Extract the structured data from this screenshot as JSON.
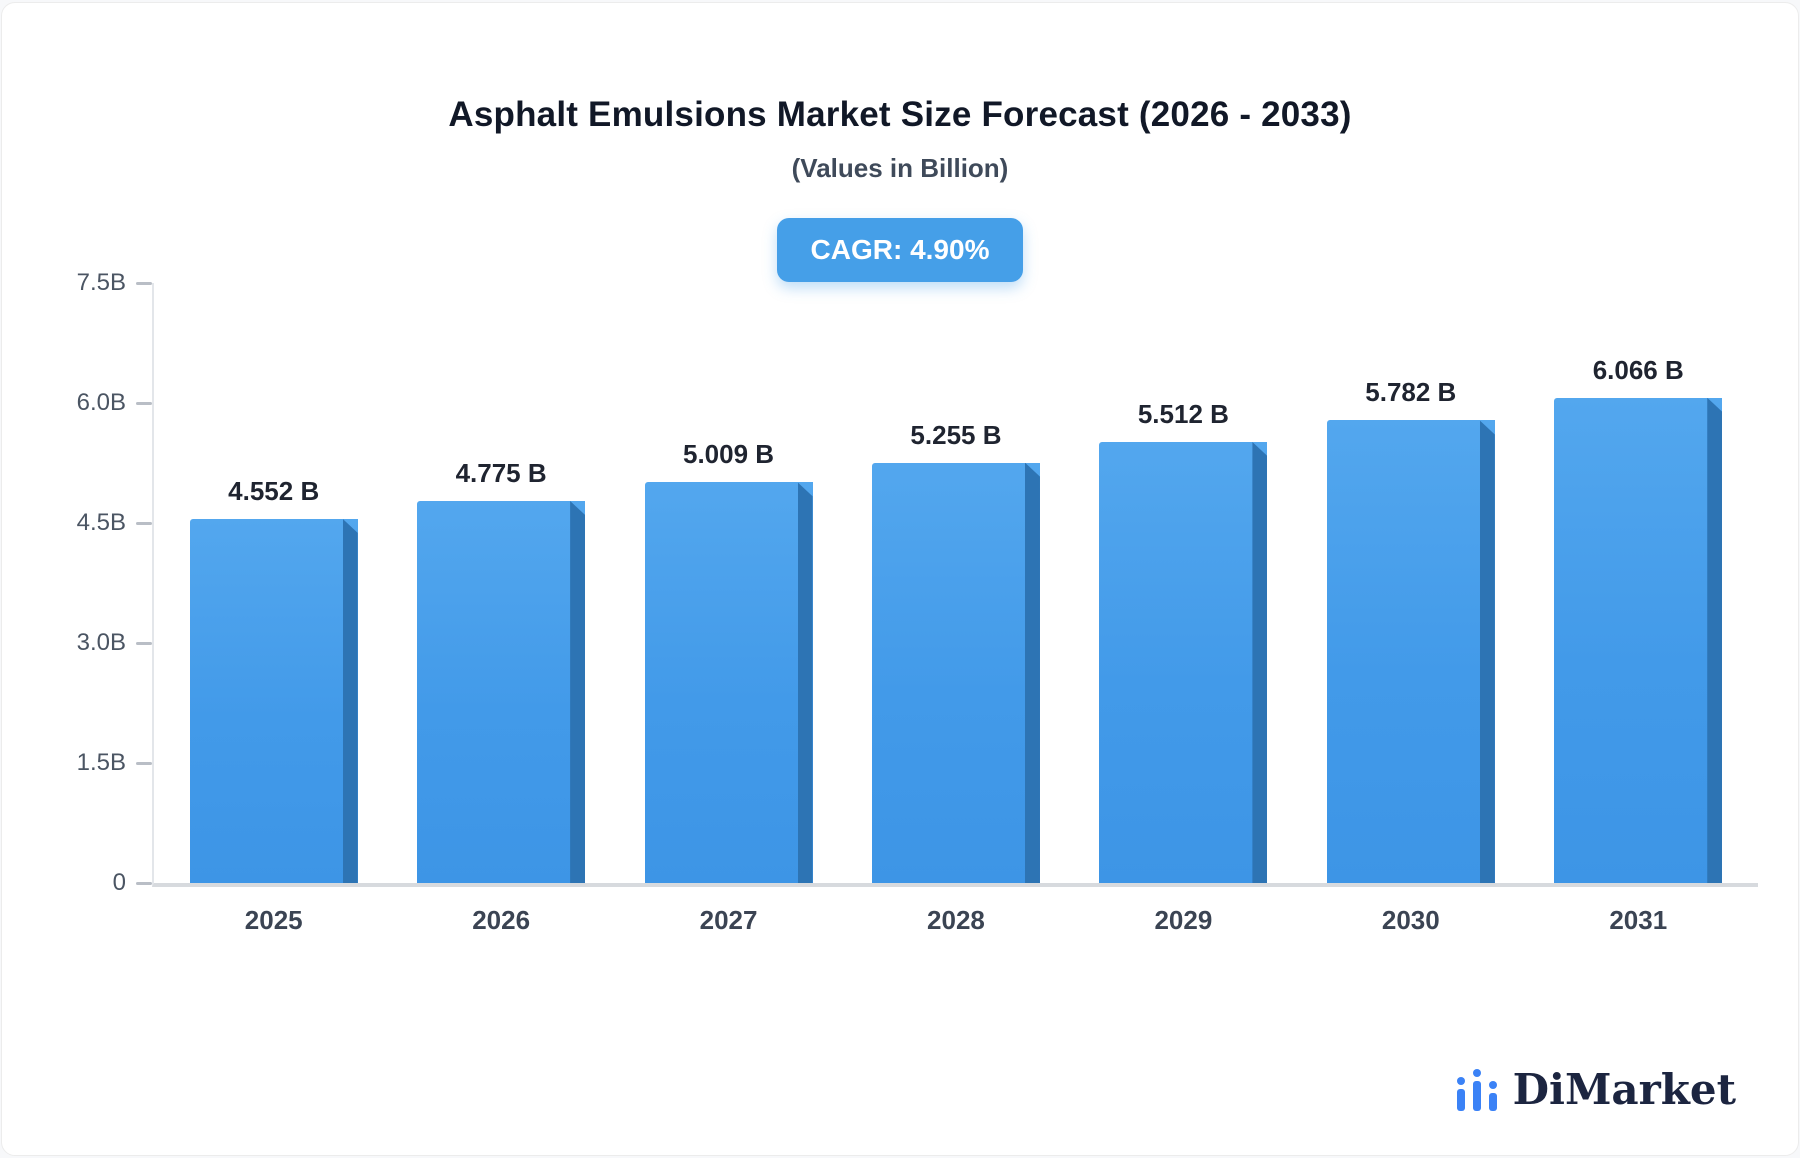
{
  "chart_data": {
    "type": "bar",
    "title": "Asphalt Emulsions Market Size Forecast (2026 - 2033)",
    "subtitle": "(Values in Billion)",
    "cagr_label": "CAGR: 4.90%",
    "categories": [
      "2025",
      "2026",
      "2027",
      "2028",
      "2029",
      "2030",
      "2031"
    ],
    "values": [
      4.552,
      4.775,
      5.009,
      5.255,
      5.512,
      5.782,
      6.066
    ],
    "value_labels": [
      "4.552 B",
      "4.775 B",
      "5.009 B",
      "5.255 B",
      "5.512 B",
      "5.782 B",
      "6.066 B"
    ],
    "ylim": [
      0,
      7.5
    ],
    "yticks": [
      {
        "value": 0,
        "label": "0"
      },
      {
        "value": 1.5,
        "label": "1.5B"
      },
      {
        "value": 3,
        "label": "3.0B"
      },
      {
        "value": 4.5,
        "label": "4.5B"
      },
      {
        "value": 6,
        "label": "6.0B"
      },
      {
        "value": 7.5,
        "label": "7.5B"
      }
    ],
    "bar_color_top": "#53a7ee",
    "bar_color_bottom": "#3d95e6",
    "bar_side_color": "#2d74b4",
    "grid": false,
    "legend": "none"
  },
  "branding": {
    "logo_text": "DiMarket",
    "logo_icon": "mini-bar-chart-icon",
    "accent_color": "#3b82f6"
  }
}
